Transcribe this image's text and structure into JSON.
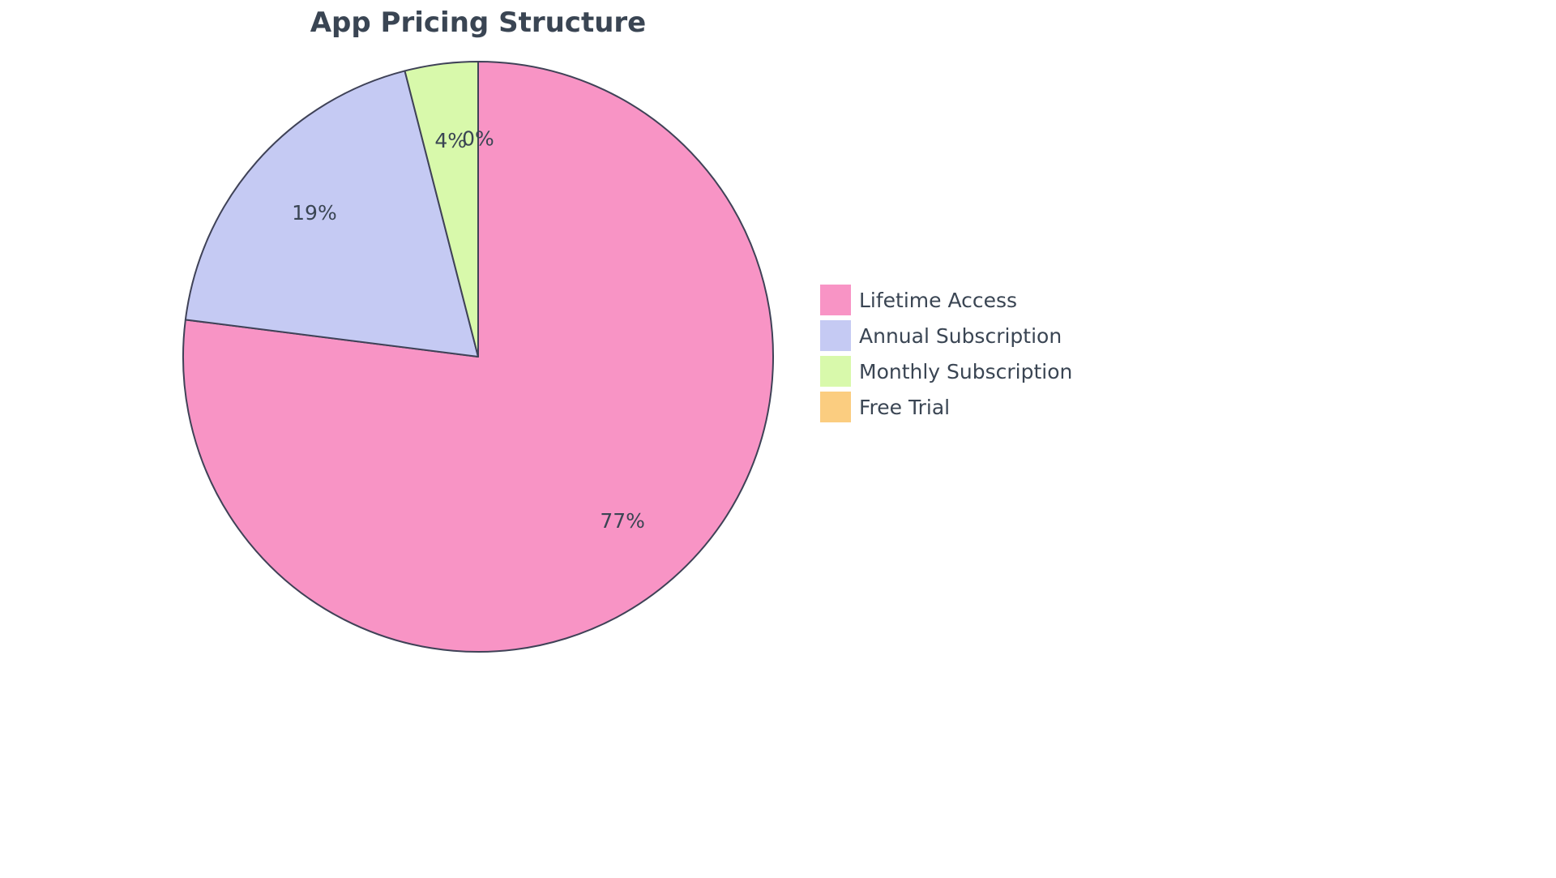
{
  "title": "App Pricing Structure",
  "text_color": "#3a4553",
  "chart_data": {
    "type": "pie",
    "title": "App Pricing Structure",
    "categories": [
      "Lifetime Access",
      "Annual Subscription",
      "Monthly Subscription",
      "Free Trial"
    ],
    "values": [
      77,
      19,
      4,
      0
    ],
    "percent_labels": [
      "77%",
      "19%",
      "4%",
      "0%"
    ],
    "colors": [
      "#f894c5",
      "#c5caf3",
      "#d8f9ab",
      "#fbcd80"
    ],
    "stroke_color": "#3f4257",
    "start_angle_deg": 0,
    "direction": "clockwise",
    "legend_position": "right",
    "legend": [
      "Lifetime Access",
      "Annual Subscription",
      "Monthly Subscription",
      "Free Trial"
    ]
  }
}
